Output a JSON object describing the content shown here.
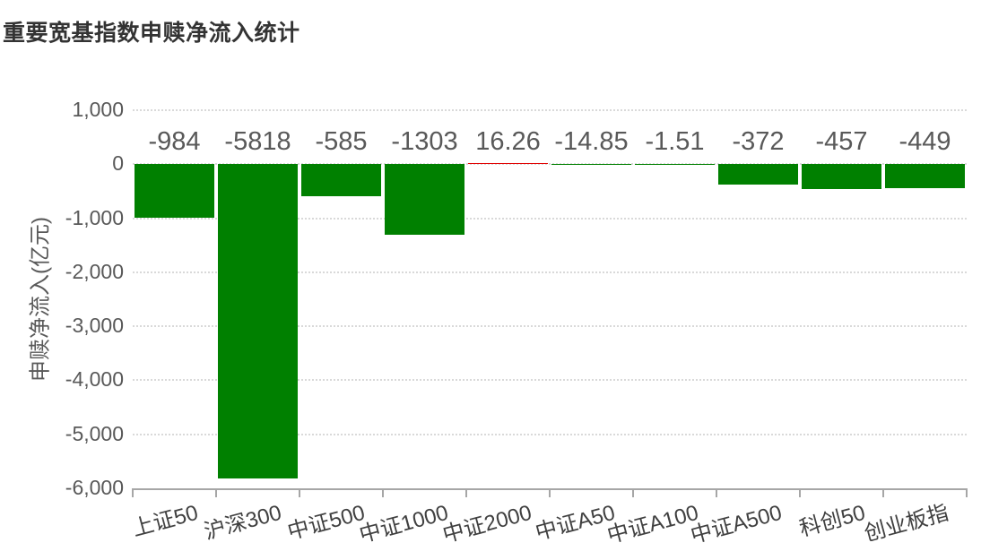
{
  "page": {
    "title": "重要宽基指数申赎净流入统计"
  },
  "chart_data": {
    "type": "bar",
    "title": "重要宽基指数申赎净流入统计",
    "xlabel": "",
    "ylabel": "申赎净流入(亿元)",
    "categories": [
      "上证50",
      "沪深300",
      "中证500",
      "中证1000",
      "中证2000",
      "中证A50",
      "中证A100",
      "中证A500",
      "科创50",
      "创业板指"
    ],
    "values": [
      -984,
      -5818,
      -585,
      -1303,
      16.26,
      -14.85,
      -1.51,
      -372,
      -457,
      -449
    ],
    "data_labels": [
      "-984",
      "-5818",
      "-585",
      "-1303",
      "16.26",
      "-14.85",
      "-1.51",
      "-372",
      "-457",
      "-449"
    ],
    "ylim": [
      -6000,
      1000
    ],
    "yticks": [
      1000,
      0,
      -1000,
      -2000,
      -3000,
      -4000,
      -5000,
      -6000
    ],
    "ytick_labels": [
      "1,000",
      "0",
      "-1,000",
      "-2,000",
      "-3,000",
      "-4,000",
      "-5,000",
      "-6,000"
    ],
    "grid": "horizontal-dotted",
    "legend": "none",
    "colors": {
      "bar_negative": "#008000",
      "bar_positive": "#e00000",
      "gridline": "#d9d9d9",
      "axis_line": "#a6a6a6",
      "tick_text": "#595959",
      "data_label_text": "#595959",
      "category_text": "#404040",
      "title_text": "#333333"
    }
  }
}
